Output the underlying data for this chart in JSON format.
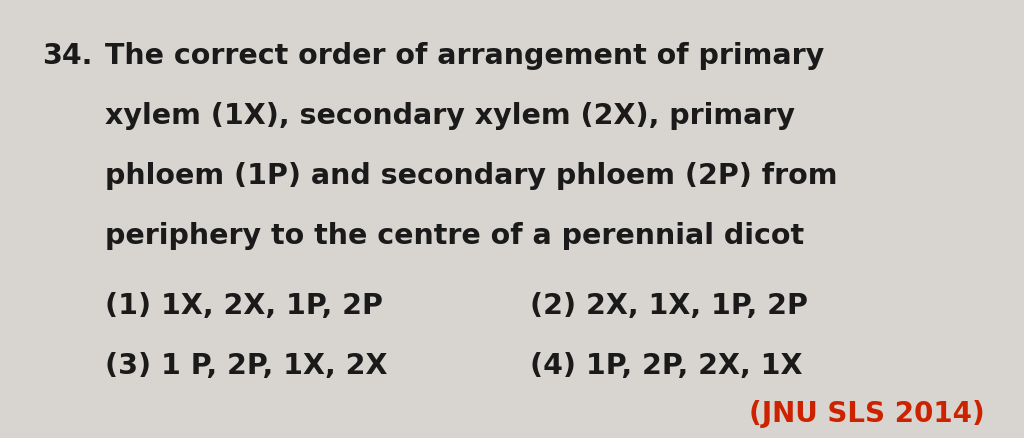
{
  "background_color": "#d8d5d0",
  "text_color": "#1a1a1a",
  "accent_color": "#cc2200",
  "question_number": "34.",
  "line1": "The correct order of arrangement of primary",
  "line2": "xylem (1X), secondary xylem (2X), primary",
  "line3": "phloem (1P) and secondary phloem (2P) from",
  "line4": "periphery to the centre of a perennial dicot",
  "opt1": "(1) 1X, 2X, 1P, 2P",
  "opt2": "(2) 2X, 1X, 1P, 2P",
  "opt3": "(3) 1 P, 2P, 1X, 2X",
  "opt4": "(4) 1P, 2P, 2X, 1X",
  "source": "(JNU SLS 2014)",
  "font_size_main": 20.5,
  "font_size_opts": 20.5,
  "font_size_source": 20,
  "font_family": "DejaVu Sans"
}
